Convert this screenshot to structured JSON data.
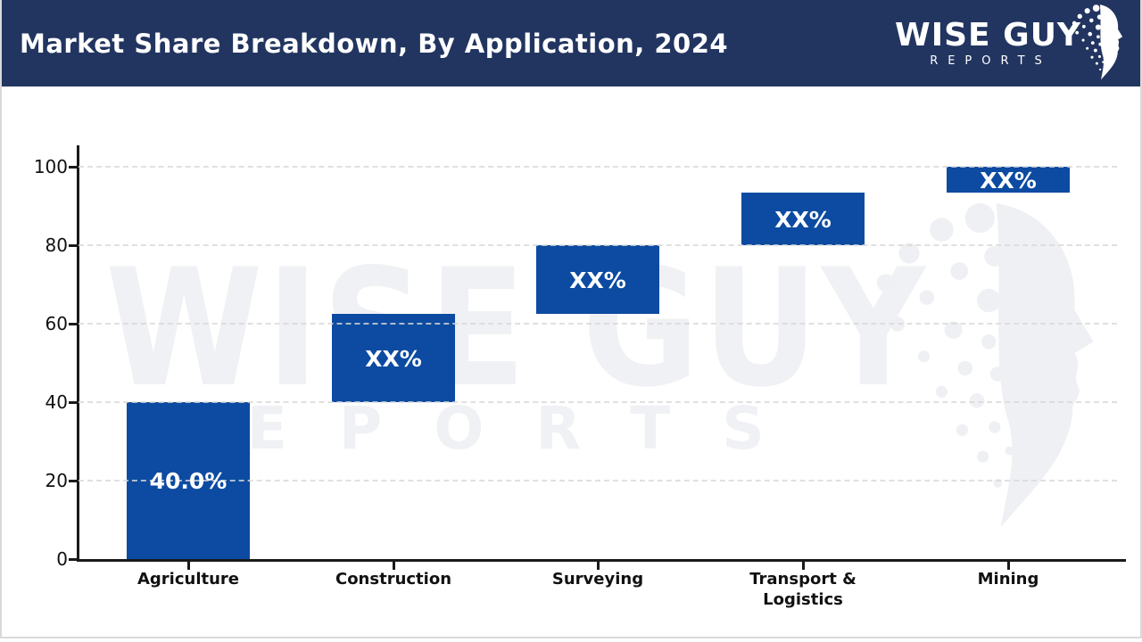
{
  "header": {
    "title": "Market Share Breakdown, By Application, 2024",
    "bg_color": "#223560",
    "logo": {
      "line1": "WISE GUY",
      "line2": "REPORTS"
    }
  },
  "watermark": {
    "line1": "WISE GUY",
    "line2": "REPORTS"
  },
  "chart_data": {
    "type": "bar",
    "subtype": "waterfall",
    "title": "Market Share Breakdown, By Application, 2024",
    "categories": [
      "Agriculture",
      "Construction",
      "Surveying",
      "Transport &\nLogistics",
      "Mining"
    ],
    "segments": [
      {
        "category": "Agriculture",
        "start": 0,
        "end": 40,
        "value_label": "40.0%"
      },
      {
        "category": "Construction",
        "start": 40,
        "end": 62.5,
        "value_label": "XX%"
      },
      {
        "category": "Surveying",
        "start": 62.5,
        "end": 80,
        "value_label": "XX%"
      },
      {
        "category": "Transport & Logistics",
        "start": 80,
        "end": 93.3,
        "value_label": "XX%"
      },
      {
        "category": "Mining",
        "start": 93.3,
        "end": 100,
        "value_label": "XX%"
      }
    ],
    "ylim": [
      0,
      100
    ],
    "yticks": [
      0,
      20,
      40,
      60,
      80,
      100
    ],
    "xlabel": "",
    "ylabel": "",
    "grid": {
      "axis": "y",
      "style": "dashed",
      "color": "#d9d9d9",
      "drawn_above_bars": true
    },
    "legend": "none",
    "bar_color": "#0c4ba1",
    "bar_label_color": "#ffffff"
  }
}
